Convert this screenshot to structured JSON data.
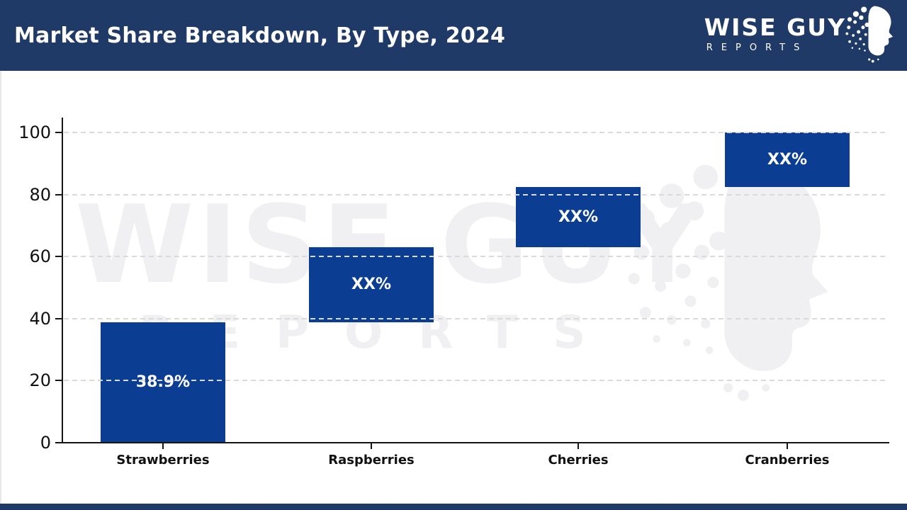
{
  "header": {
    "title": "Market Share Breakdown, By Type, 2024",
    "brand": {
      "line1": "WISE GUY",
      "line2": "REPORTS"
    }
  },
  "watermark": {
    "line1": "WISE GUY",
    "line2": "REPORTS"
  },
  "chart_data": {
    "type": "bar",
    "subtype": "waterfall",
    "title": "Market Share Breakdown, By Type, 2024",
    "categories": [
      "Strawberries",
      "Raspberries",
      "Cherries",
      "Cranberries"
    ],
    "segments": [
      {
        "start": 0,
        "end": 38.9,
        "label": "38.9%"
      },
      {
        "start": 38.9,
        "end": 63,
        "label": "XX%"
      },
      {
        "start": 63,
        "end": 82.5,
        "label": "XX%"
      },
      {
        "start": 82.5,
        "end": 100,
        "label": "XX%"
      }
    ],
    "xlabel": "",
    "ylabel": "",
    "ylim": [
      0,
      100
    ],
    "yticks": [
      0,
      20,
      40,
      60,
      80,
      100
    ],
    "grid": "horizontal-dashed",
    "legend": false,
    "bar_color": "#0b3e92",
    "bar_label_color": "#ffffff"
  },
  "colors": {
    "header_bg": "#203a68",
    "footer_bg": "#203a68",
    "bar": "#0b3e92",
    "grid": "#dadada",
    "axis": "#151515",
    "watermark": "#f0f0f2"
  }
}
